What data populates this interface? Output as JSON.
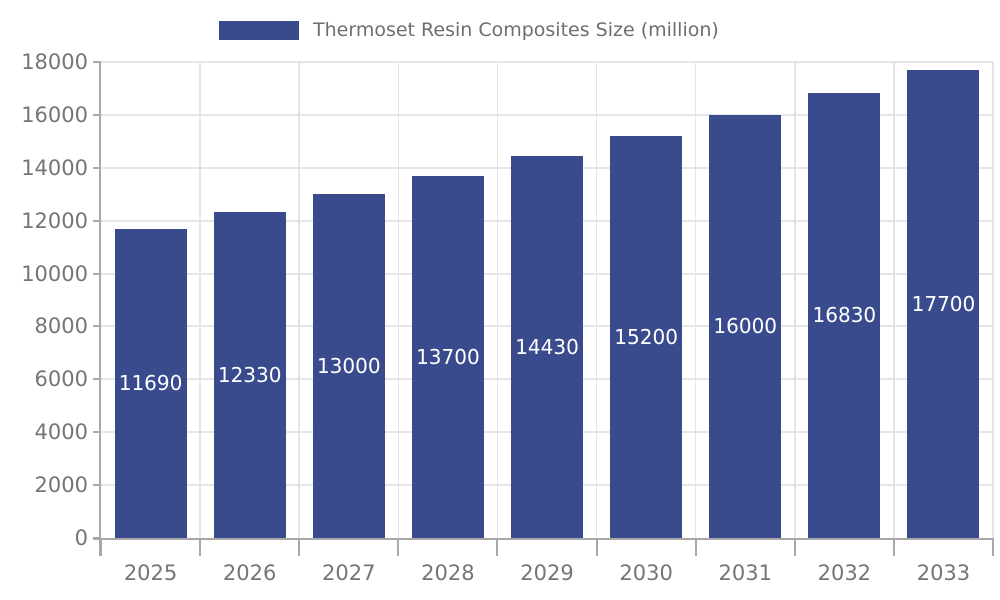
{
  "chart_data": {
    "type": "bar",
    "title": "",
    "categories": [
      "2025",
      "2026",
      "2027",
      "2028",
      "2029",
      "2030",
      "2031",
      "2032",
      "2033"
    ],
    "series": [
      {
        "name": "Thermoset Resin Composites Size (million)",
        "values": [
          11690,
          12330,
          13000,
          13700,
          14430,
          15200,
          16000,
          16830,
          17700
        ]
      }
    ],
    "xlabel": "",
    "ylabel": "",
    "ylim": [
      0,
      18000
    ],
    "ytick_step": 2000,
    "yticks": [
      0,
      2000,
      4000,
      6000,
      8000,
      10000,
      12000,
      14000,
      16000,
      18000
    ],
    "grid": true,
    "legend_position": "top",
    "colors": {
      "bar": "#394B8D",
      "bar_label": "#ffffff",
      "axis_text": "#757575",
      "legend_text": "#6e6e6e",
      "gridline": "#e6e6e6",
      "axis_line": "#a8a8a8"
    }
  }
}
